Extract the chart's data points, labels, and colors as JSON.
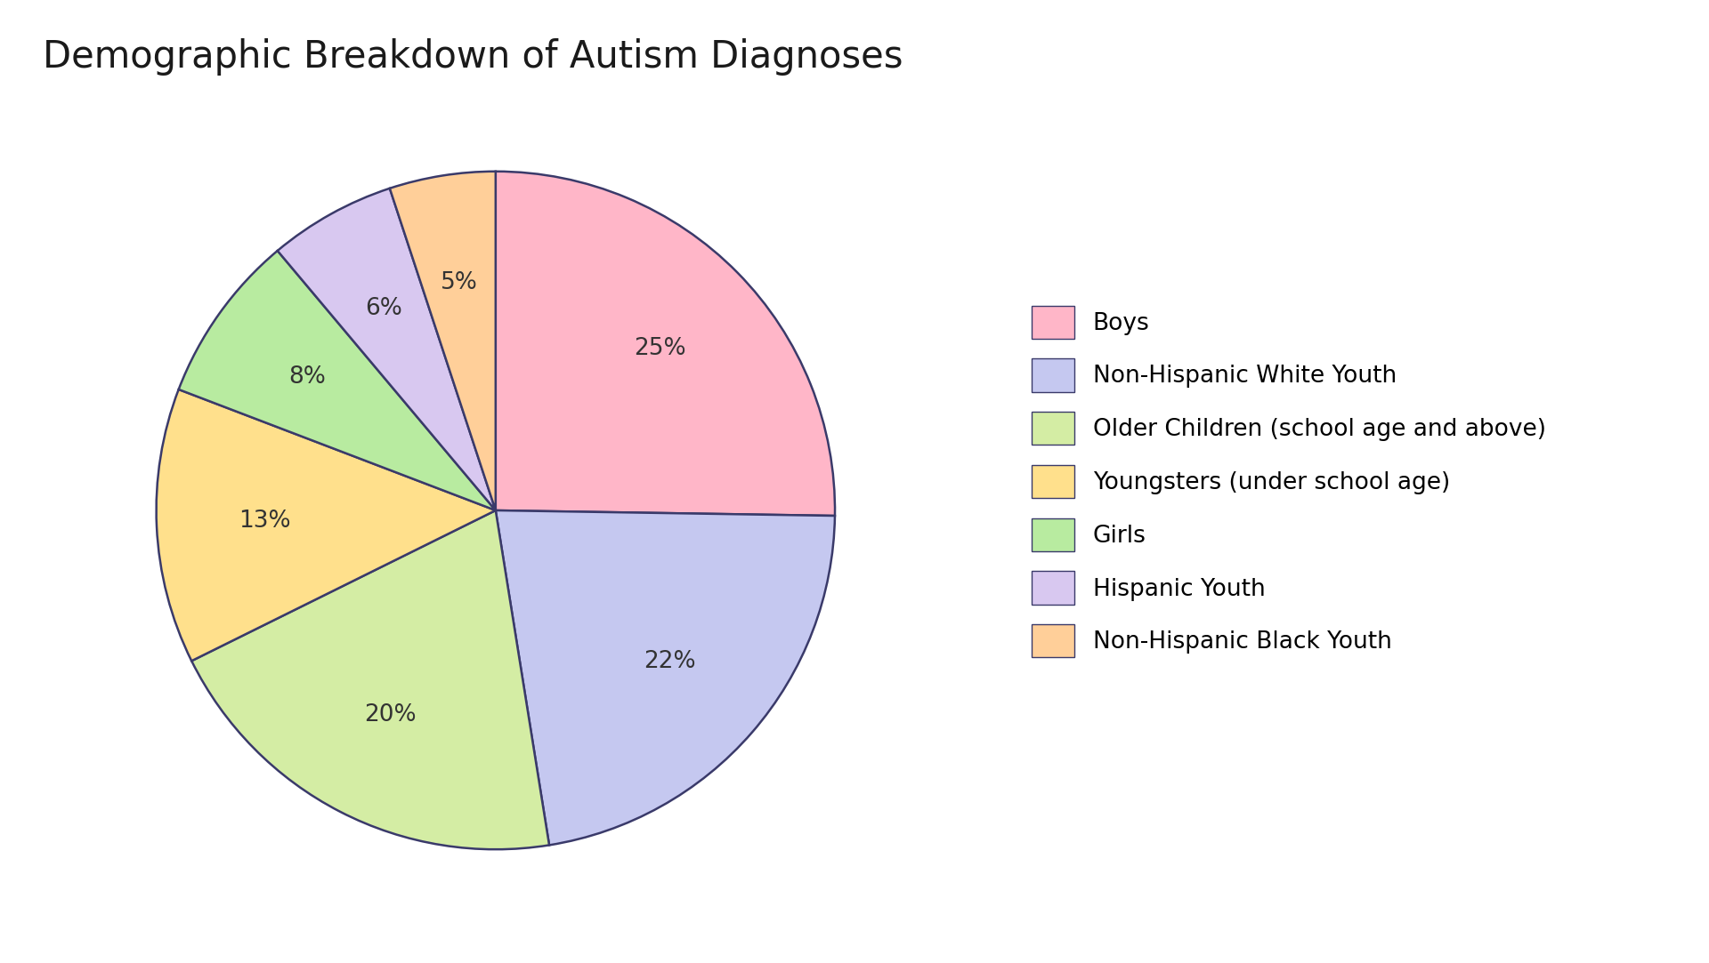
{
  "title": "Demographic Breakdown of Autism Diagnoses",
  "labels": [
    "Boys",
    "Non-Hispanic White Youth",
    "Older Children (school age and above)",
    "Youngsters (under school age)",
    "Girls",
    "Hispanic Youth",
    "Non-Hispanic Black Youth"
  ],
  "values": [
    25,
    22,
    20,
    13,
    8,
    6,
    5
  ],
  "colors": [
    "#FFB6C8",
    "#C5C8F0",
    "#D4EDA4",
    "#FFE08C",
    "#B8EBA0",
    "#D8C8F0",
    "#FFCF99"
  ],
  "edge_color": "#3A3A6A",
  "edge_width": 1.8,
  "background_color": "#FFFFFF",
  "title_fontsize": 30,
  "label_fontsize": 19,
  "legend_fontsize": 19,
  "startangle": 90,
  "pct_distance": 0.68
}
